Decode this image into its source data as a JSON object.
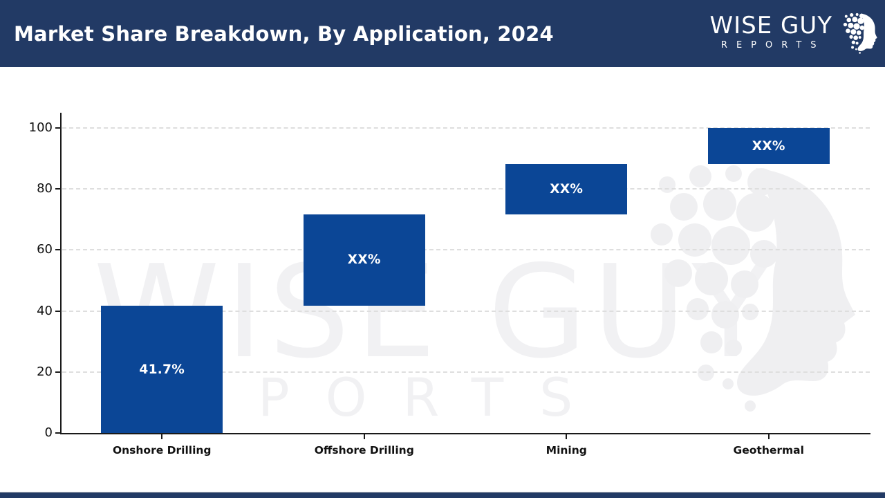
{
  "header": {
    "title": "Market Share Breakdown, By Application, 2024",
    "bg_color": "#223A65",
    "text_color": "#ffffff",
    "brand": {
      "line1": "WISE GUY",
      "line2": "REPORTS"
    }
  },
  "watermark": {
    "line1": "WISE GUY",
    "line2": "REPORTS"
  },
  "chart_data": {
    "type": "bar",
    "subtype": "waterfall",
    "title": "Market Share Breakdown, By Application, 2024",
    "xlabel": "",
    "ylabel": "",
    "categories": [
      "Onshore Drilling",
      "Offshore Drilling",
      "Mining",
      "Geothermal"
    ],
    "values": [
      41.7,
      30.0,
      16.5,
      11.8
    ],
    "segments": [
      {
        "category": "Onshore Drilling",
        "start": 0,
        "end": 41.7,
        "label": "41.7%"
      },
      {
        "category": "Offshore Drilling",
        "start": 41.7,
        "end": 71.7,
        "label": "XX%"
      },
      {
        "category": "Mining",
        "start": 71.7,
        "end": 88.2,
        "label": "XX%"
      },
      {
        "category": "Geothermal",
        "start": 88.2,
        "end": 100.0,
        "label": "XX%"
      }
    ],
    "yticks": [
      0,
      20,
      40,
      60,
      80,
      100
    ],
    "ylim": [
      0,
      105
    ],
    "grid": "horizontal-dashed",
    "legend": "none",
    "bar_color": "#0B4696",
    "bar_label_color": "#ffffff",
    "axis_color": "#1a1a1a",
    "grid_color": "#dedede"
  },
  "footer": {
    "bg_color": "#223A65"
  }
}
